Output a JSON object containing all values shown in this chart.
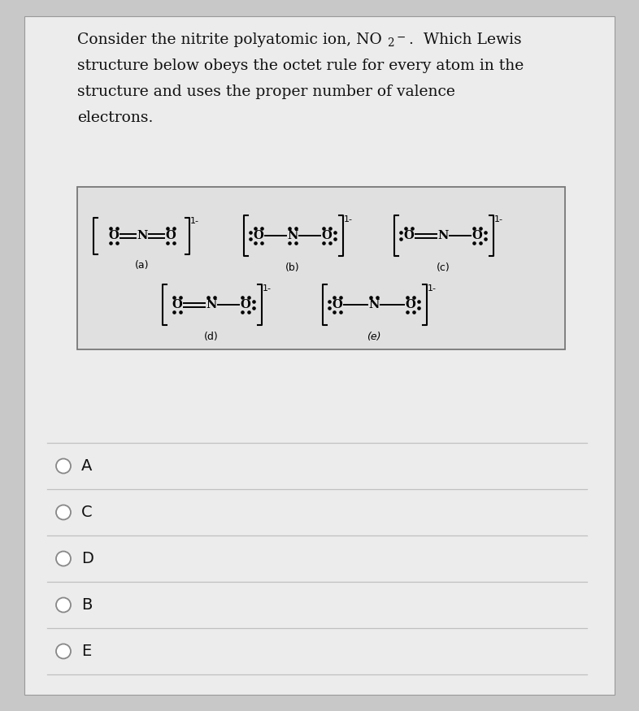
{
  "bg_color": "#c8c8c8",
  "card_color": "#ececec",
  "text_color": "#111111",
  "line_color": "#c0c0c0",
  "box_bg": "#e0e0e0",
  "box_border": "#777777",
  "options": [
    "A",
    "C",
    "D",
    "B",
    "E"
  ],
  "q_line1a": "Consider the nitrite polyatomic ion, NO",
  "q_line1b": ".  Which Lewis",
  "q_line2": "structure below obeys the octet rule for every atom in the",
  "q_line3": "structure and uses the proper number of valence",
  "q_line4": "electrons.",
  "sub2": "2",
  "sup_minus": "−"
}
